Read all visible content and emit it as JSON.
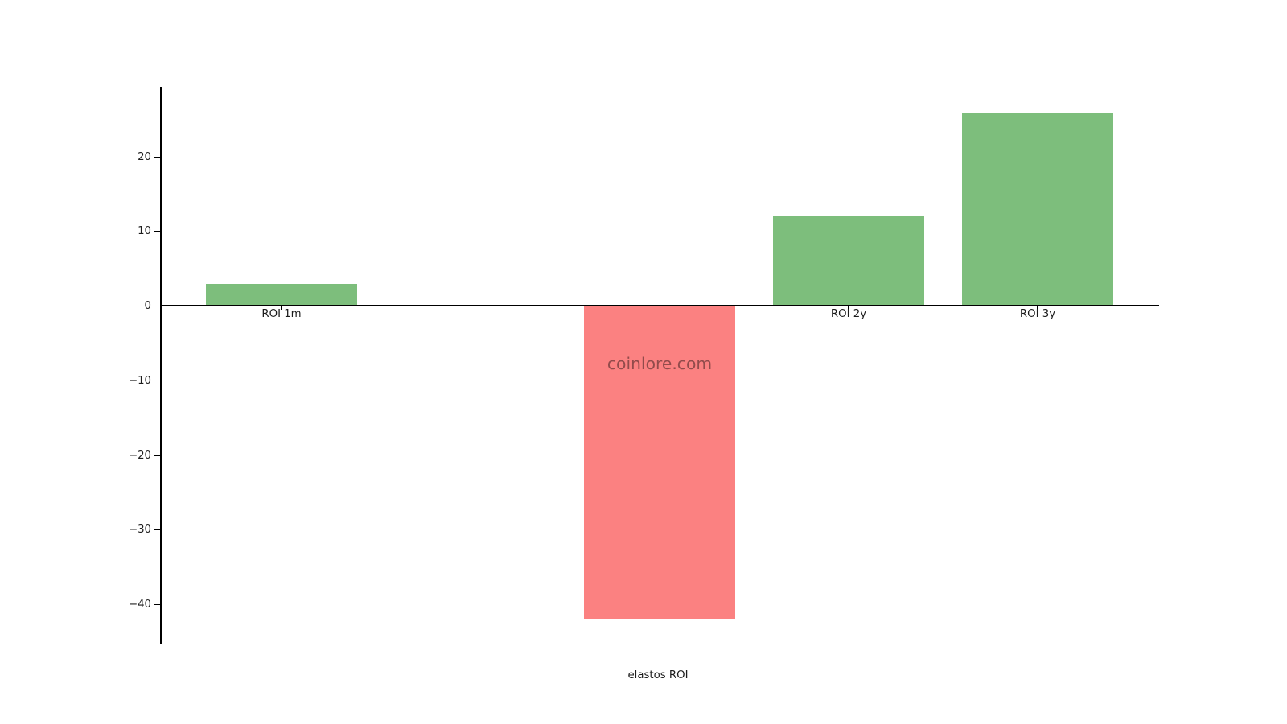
{
  "chart_data": {
    "type": "bar",
    "title": "",
    "xlabel": "elastos ROI",
    "ylabel": "",
    "watermark": "coinlore.com",
    "x_tick_labels_visible": [
      "ROI 1m",
      "ROI 2y",
      "ROI 3y"
    ],
    "y_ticks": [
      20,
      10,
      0,
      -10,
      -20,
      -30,
      -40
    ],
    "y_tick_labels": [
      "20",
      "10",
      "0",
      "−10",
      "−20",
      "−30",
      "−40"
    ],
    "bars": [
      {
        "label": "ROI 1m",
        "slot": 0,
        "value": 3,
        "color": "#7dbe7c",
        "tick_label_visible": true
      },
      {
        "label": "",
        "slot": 2,
        "value": -42,
        "color": "#fb8181",
        "tick_label_visible": false
      },
      {
        "label": "ROI 2y",
        "slot": 3,
        "value": 12,
        "color": "#7dbe7c",
        "tick_label_visible": true
      },
      {
        "label": "ROI 3y",
        "slot": 4,
        "value": 26,
        "color": "#7dbe7c",
        "tick_label_visible": true
      }
    ],
    "num_slots": 5,
    "ylim": [
      -45.2,
      29.4
    ],
    "grid": false,
    "legend": "none",
    "colors": {
      "positive": "#7dbe7c",
      "negative": "#fb8181",
      "axis": "#000000",
      "tick_text": "#1c1c1c",
      "watermark_text": "rgba(0,0,0,0.42)",
      "background": "#ffffff"
    }
  }
}
